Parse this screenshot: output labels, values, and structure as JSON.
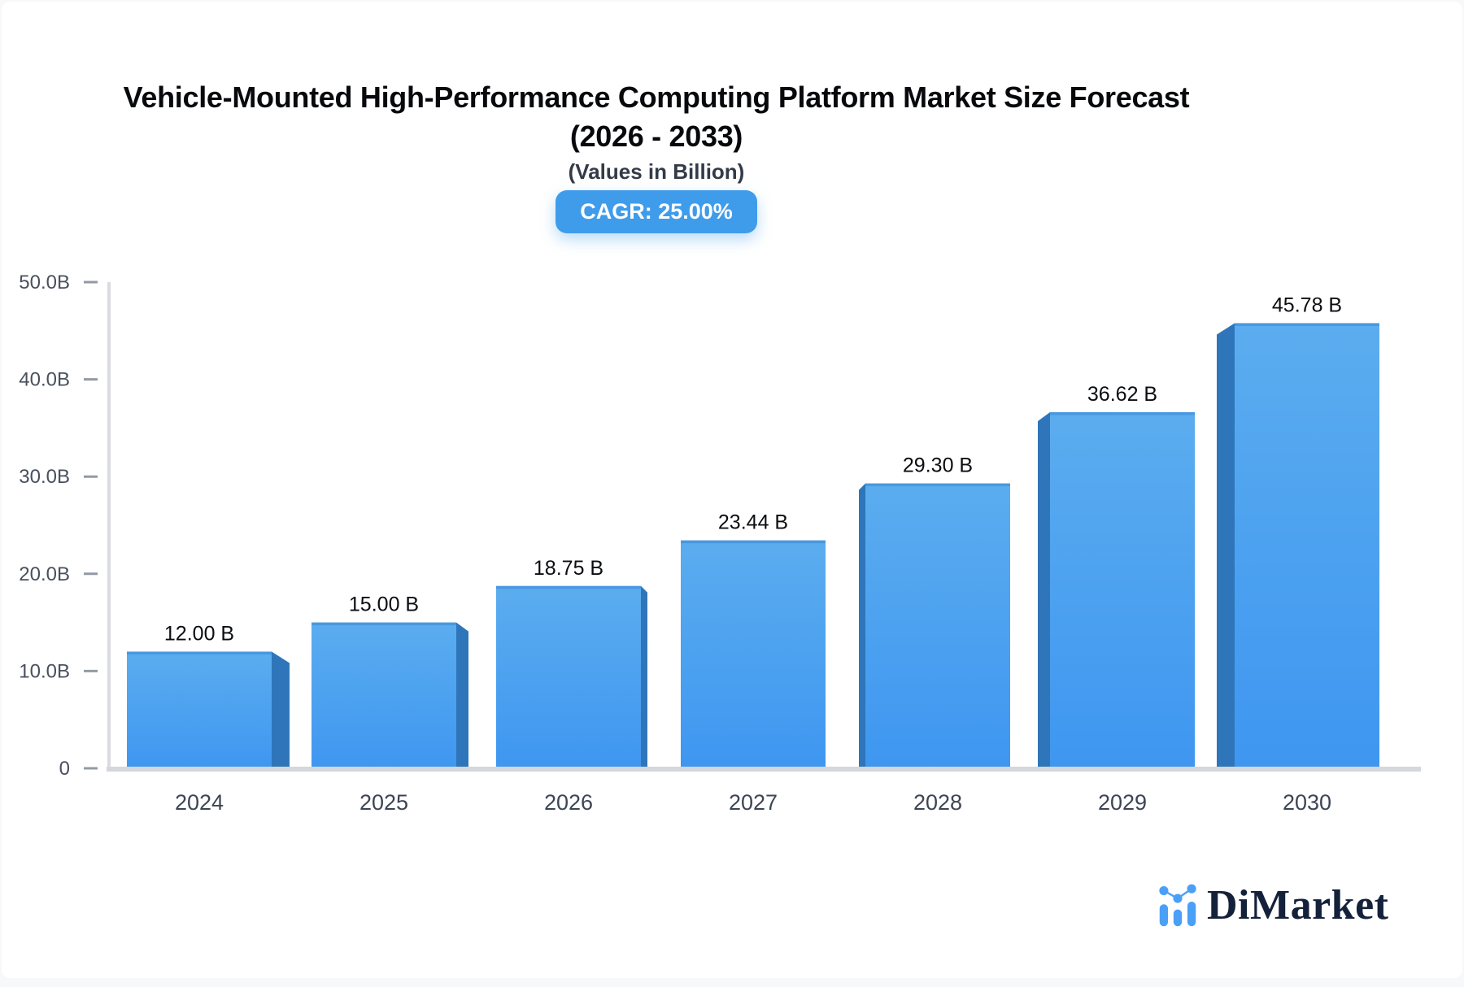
{
  "page": {
    "background": "#f7f8f9",
    "card_background": "#ffffff"
  },
  "header": {
    "title_line1": "Vehicle-Mounted High-Performance Computing Platform Market Size Forecast",
    "title_line2": "(2026 - 2033)",
    "subtitle": "(Values in Billion)",
    "cagr_badge": "CAGR: 25.00%",
    "badge_color": "#3f9ceb"
  },
  "chart_data": {
    "type": "bar",
    "title": "Vehicle-Mounted High-Performance Computing Platform Market Size Forecast (2026 - 2033)",
    "subtitle": "(Values in Billion)",
    "annotation": "CAGR: 25.00%",
    "categories": [
      "2024",
      "2025",
      "2026",
      "2027",
      "2028",
      "2029",
      "2030"
    ],
    "values": [
      12.0,
      15.0,
      18.75,
      23.44,
      29.3,
      36.62,
      45.78
    ],
    "value_labels": [
      "12.00 B",
      "15.00 B",
      "18.75 B",
      "23.44 B",
      "29.30 B",
      "36.62 B",
      "45.78 B"
    ],
    "unit": "Billion",
    "xlabel": "",
    "ylabel": "",
    "ylim": [
      0,
      50
    ],
    "yticks": [
      0,
      10,
      20,
      30,
      40,
      50
    ],
    "ytick_labels": [
      "0",
      "10.0B",
      "20.0B",
      "30.0B",
      "40.0B",
      "50.0B"
    ],
    "grid": false,
    "legend": "none",
    "bar_style": "3d-extruded",
    "colors": {
      "bar_face_top": "#5badef",
      "bar_face_bottom": "#3e96f0",
      "bar_side": "#2e76b9",
      "bar_top_edge": "#3a86d3",
      "axis_line": "#d9dbe0",
      "baseline": "#d4d7dc",
      "tick": "#939aa5",
      "ytick_label": "#49505d",
      "category_label": "#3d4554",
      "value_label": "#0b0d11"
    }
  },
  "logo": {
    "text": "DiMarket",
    "icon": "bar-line-chart-icon",
    "icon_color": "#4aa0f7",
    "text_color": "#14213a"
  }
}
